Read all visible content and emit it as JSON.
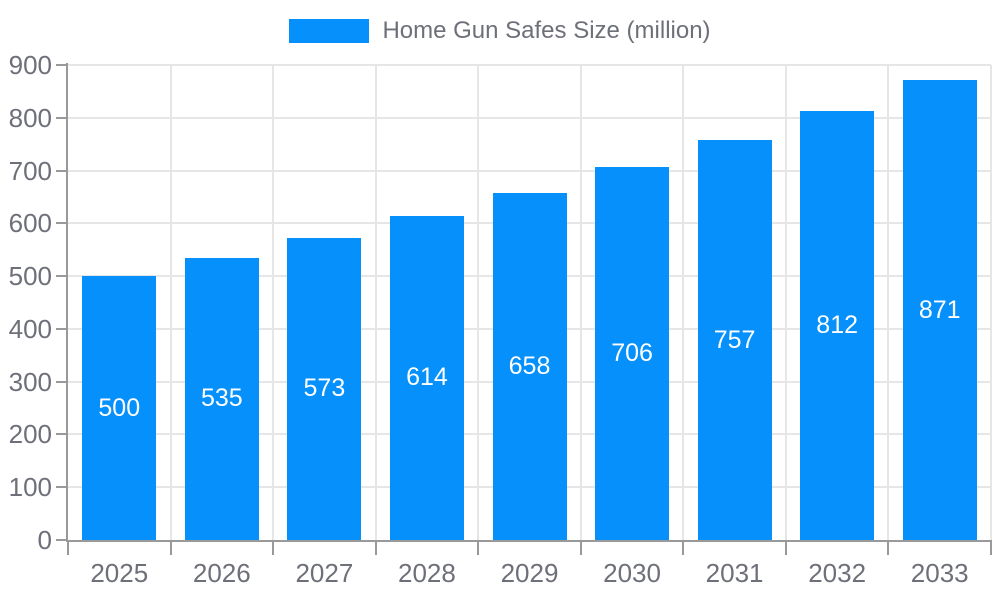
{
  "chart_data": {
    "type": "bar",
    "title": "Home Gun Safes Size (million)",
    "categories": [
      "2025",
      "2026",
      "2027",
      "2028",
      "2029",
      "2030",
      "2031",
      "2032",
      "2033"
    ],
    "series": [
      {
        "name": "Home Gun Safes Size (million)",
        "values": [
          500,
          535,
          573,
          614,
          658,
          706,
          757,
          812,
          871
        ]
      }
    ],
    "values": [
      500,
      535,
      573,
      614,
      658,
      706,
      757,
      812,
      871
    ],
    "value_labels_visible": true,
    "xlabel": "",
    "ylabel": "",
    "ylim": [
      0,
      900
    ],
    "yticks": [
      0,
      100,
      200,
      300,
      400,
      500,
      600,
      700,
      800,
      900
    ],
    "grid": "horizontal and vertical light gridlines",
    "legend_position": "top-center",
    "colors": {
      "bar": "#0590fc",
      "value_label": "#ffffff",
      "axis_line": "#999999",
      "tick": "#999999",
      "text": "#6e7079",
      "gridline": "#e6e6e6",
      "background": "#ffffff"
    }
  },
  "legend": {
    "series_label": "Home Gun Safes Size (million)"
  }
}
